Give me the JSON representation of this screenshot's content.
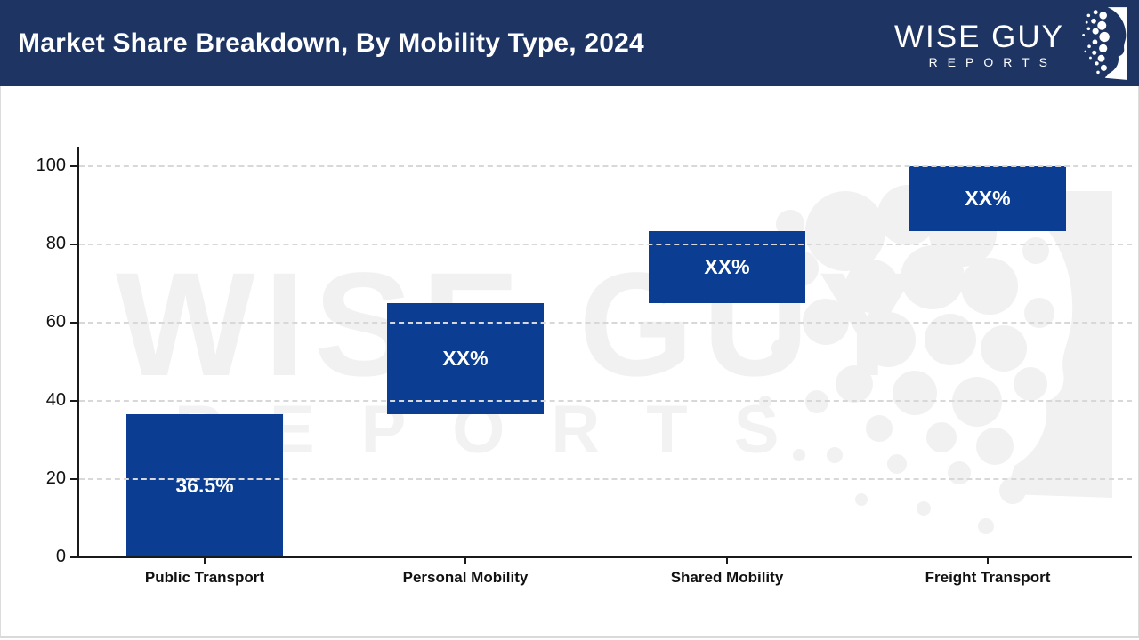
{
  "header": {
    "title": "Market Share Breakdown, By Mobility Type, 2024",
    "logo": {
      "line1": "WISE GUY",
      "line2": "REPORTS"
    }
  },
  "watermark": {
    "line1": "WISE GUY",
    "line2": "REPORTS"
  },
  "colors": {
    "header_bg": "#1e3563",
    "bar": "#0b3e92",
    "bar_label": "#ffffff",
    "gridline": "#d8d8d8",
    "axis": "#1a1a1a",
    "watermark": "#f1f1f1"
  },
  "chart_data": {
    "type": "bar",
    "subtype": "floating-waterfall",
    "title": "Market Share Breakdown, By Mobility Type, 2024",
    "categories": [
      "Public Transport",
      "Personal Mobility",
      "Shared Mobility",
      "Freight Transport"
    ],
    "bars": [
      {
        "category": "Public Transport",
        "label": "36.5%",
        "start": 0,
        "end": 36.5
      },
      {
        "category": "Personal Mobility",
        "label": "XX%",
        "start": 36.5,
        "end": 65
      },
      {
        "category": "Shared Mobility",
        "label": "XX%",
        "start": 65,
        "end": 83.5
      },
      {
        "category": "Freight Transport",
        "label": "XX%",
        "start": 83.5,
        "end": 100
      }
    ],
    "y_ticks": [
      0,
      20,
      40,
      60,
      80,
      100
    ],
    "ylim": [
      0,
      105
    ],
    "xlabel": "",
    "ylabel": "",
    "grid": "horizontal-dashed",
    "legend": "none"
  }
}
